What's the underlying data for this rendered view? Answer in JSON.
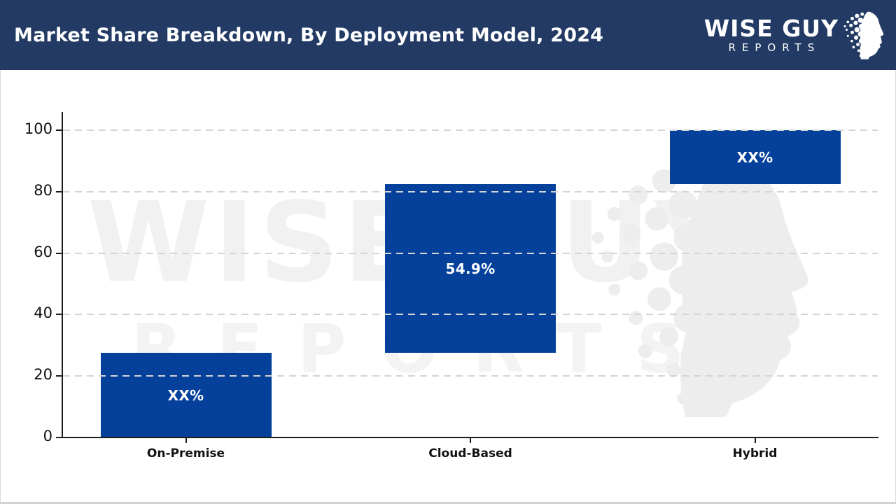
{
  "header": {
    "title": "Market Share Breakdown, By Deployment Model, 2024",
    "logo": {
      "brand_line1": "WISE GUY",
      "brand_line2": "REPORTS"
    }
  },
  "watermark": {
    "line1": "WISE GUY",
    "line2": "REPORTS"
  },
  "chart_data": {
    "type": "bar",
    "variant": "waterfall",
    "title": "Market Share Breakdown, By Deployment Model, 2024",
    "categories": [
      "On-Premise",
      "Cloud-Based",
      "Hybrid"
    ],
    "bars": [
      {
        "category": "On-Premise",
        "label": "XX%",
        "start": 0,
        "end": 27.5
      },
      {
        "category": "Cloud-Based",
        "label": "54.9%",
        "start": 27.5,
        "end": 82.4
      },
      {
        "category": "Hybrid",
        "label": "XX%",
        "start": 82.4,
        "end": 100
      }
    ],
    "ylim": [
      0,
      100
    ],
    "yticks": [
      0,
      20,
      40,
      60,
      80,
      100
    ],
    "xlabel": "",
    "ylabel": "",
    "grid": "horizontal-dashed",
    "legend": "none",
    "bar_color": "#05419B",
    "bar_label_color": "#ffffff"
  },
  "colors": {
    "header_bg": "#223A64",
    "bar": "#05419B",
    "grid": "#d4d4d4",
    "axis": "#1c1c1c",
    "watermark": "#f1f1f1",
    "page_bg": "#ffffff"
  }
}
